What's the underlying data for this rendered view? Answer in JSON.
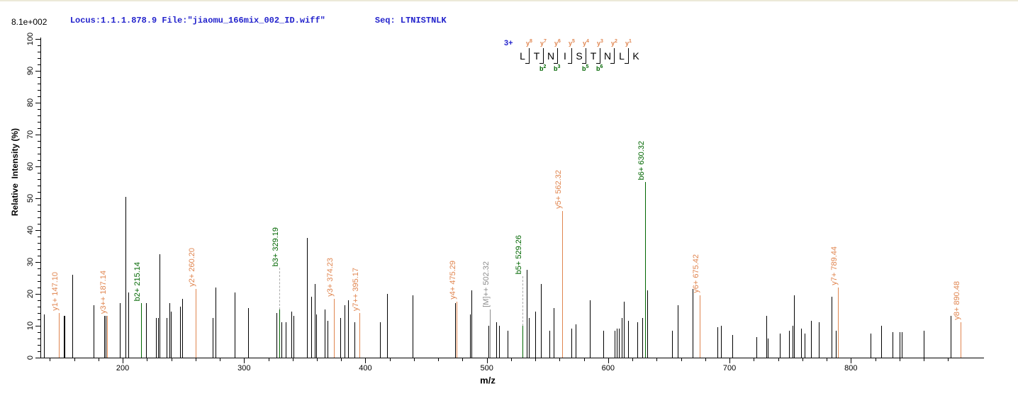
{
  "header": {
    "locus_line": "Locus:1.1.1.878.9 File:\"jiaomu_166mix_002_ID.wiff\"",
    "seq_label": "Seq: LTNISTNLK",
    "max_intensity": "8.1e+002"
  },
  "sequence_panel": {
    "charge": "3+",
    "residues": [
      "L",
      "T",
      "N",
      "I",
      "S",
      "T",
      "N",
      "L",
      "K"
    ],
    "boundaries": [
      {
        "y": 8,
        "b": null
      },
      {
        "y": 7,
        "b": 2
      },
      {
        "y": 6,
        "b": 3
      },
      {
        "y": 5,
        "b": null
      },
      {
        "y": 4,
        "b": 5
      },
      {
        "y": 3,
        "b": 6
      },
      {
        "y": 2,
        "b": null
      },
      {
        "y": 1,
        "b": null
      }
    ]
  },
  "axes": {
    "x_label": "m/z",
    "y_label": "Relative  Intensity (%)",
    "x_ticks": [
      200,
      300,
      400,
      500,
      600,
      700,
      800
    ],
    "x_minor_step": 20,
    "x_minor_start": 140,
    "x_minor_end": 900,
    "y_ticks": [
      0,
      10,
      20,
      30,
      40,
      50,
      60,
      70,
      80,
      90,
      100
    ],
    "y_minor_step": 2,
    "x_min": 132.2,
    "x_max": 909,
    "y_min": 0,
    "y_max": 100
  },
  "colors": {
    "header_blue": "#2222CC",
    "y_ion": "#E0854F",
    "b_ion": "#006600",
    "precursor_gray": "#8C8C8C",
    "peak_black": "#000000",
    "dash_gray": "#AAAAAA"
  },
  "chart_data": {
    "type": "bar",
    "subtype": "ms2-fragment-spectrum",
    "xlabel": "m/z",
    "ylabel": "Relative  Intensity (%)",
    "xlim": [
      132,
      909
    ],
    "ylim": [
      0,
      100
    ],
    "peaks": [
      {
        "mz": 135.0,
        "pct": 13.5
      },
      {
        "mz": 147.1,
        "pct": 14,
        "ion": "y",
        "label": "y1+ 147.10"
      },
      {
        "mz": 151.5,
        "pct": 13,
        "w": 2
      },
      {
        "mz": 158.4,
        "pct": 26
      },
      {
        "mz": 176.0,
        "pct": 16.5
      },
      {
        "mz": 184.7,
        "pct": 13
      },
      {
        "mz": 186.2,
        "pct": 13
      },
      {
        "mz": 187.14,
        "pct": 13,
        "ion": "y",
        "label": "y3++ 187.14"
      },
      {
        "mz": 197.7,
        "pct": 17
      },
      {
        "mz": 202.1,
        "pct": 50.5
      },
      {
        "mz": 204.7,
        "pct": 20.5
      },
      {
        "mz": 215.14,
        "pct": 17,
        "ion": "b",
        "label": "b2+ 215.14"
      },
      {
        "mz": 219.5,
        "pct": 17
      },
      {
        "mz": 227.3,
        "pct": 12.5
      },
      {
        "mz": 229.0,
        "pct": 12.5
      },
      {
        "mz": 230.5,
        "pct": 32.5
      },
      {
        "mz": 236.0,
        "pct": 12.5
      },
      {
        "mz": 238.6,
        "pct": 17
      },
      {
        "mz": 239.9,
        "pct": 14.5
      },
      {
        "mz": 247.1,
        "pct": 16
      },
      {
        "mz": 249.2,
        "pct": 18.5
      },
      {
        "mz": 260.2,
        "pct": 21.5,
        "ion": "y",
        "label": "y2+ 260.20"
      },
      {
        "mz": 274.0,
        "pct": 12.5
      },
      {
        "mz": 276.3,
        "pct": 22
      },
      {
        "mz": 292.0,
        "pct": 20.5
      },
      {
        "mz": 303.4,
        "pct": 15.5
      },
      {
        "mz": 326.5,
        "pct": 14
      },
      {
        "mz": 329.19,
        "pct": 15,
        "ion": "b",
        "label": "b3+ 329.19",
        "label_at": 28
      },
      {
        "mz": 331.0,
        "pct": 11
      },
      {
        "mz": 334.4,
        "pct": 11
      },
      {
        "mz": 339.0,
        "pct": 14.5
      },
      {
        "mz": 340.8,
        "pct": 13
      },
      {
        "mz": 351.9,
        "pct": 37.5
      },
      {
        "mz": 355.4,
        "pct": 19
      },
      {
        "mz": 358.3,
        "pct": 23
      },
      {
        "mz": 359.5,
        "pct": 13.5
      },
      {
        "mz": 366.5,
        "pct": 15
      },
      {
        "mz": 368.8,
        "pct": 11.5
      },
      {
        "mz": 374.23,
        "pct": 18.5,
        "ion": "y",
        "label": "y3+ 374.23"
      },
      {
        "mz": 379.3,
        "pct": 12.5
      },
      {
        "mz": 382.8,
        "pct": 16.5
      },
      {
        "mz": 385.7,
        "pct": 18
      },
      {
        "mz": 391.0,
        "pct": 11
      },
      {
        "mz": 395.17,
        "pct": 14,
        "ion": "y",
        "label": "y7++ 395.17"
      },
      {
        "mz": 412.0,
        "pct": 11
      },
      {
        "mz": 418.0,
        "pct": 20
      },
      {
        "mz": 439.0,
        "pct": 19.5
      },
      {
        "mz": 474.0,
        "pct": 17
      },
      {
        "mz": 475.29,
        "pct": 17.5,
        "ion": "y",
        "label": "y4+ 475.29"
      },
      {
        "mz": 486.0,
        "pct": 13.5
      },
      {
        "mz": 487.5,
        "pct": 21
      },
      {
        "mz": 501.4,
        "pct": 10
      },
      {
        "mz": 502.32,
        "pct": 15,
        "ion": "M",
        "label": "[M]++ 502.32"
      },
      {
        "mz": 507.8,
        "pct": 11
      },
      {
        "mz": 510.2,
        "pct": 10
      },
      {
        "mz": 517.2,
        "pct": 8.5
      },
      {
        "mz": 529.26,
        "pct": 10,
        "ion": "b",
        "label": "b5+ 529.26",
        "label_at": 25.5
      },
      {
        "mz": 533.0,
        "pct": 27.5
      },
      {
        "mz": 534.7,
        "pct": 12.5
      },
      {
        "mz": 540.0,
        "pct": 14.5
      },
      {
        "mz": 544.6,
        "pct": 23
      },
      {
        "mz": 551.6,
        "pct": 8.5
      },
      {
        "mz": 555.1,
        "pct": 15.5
      },
      {
        "mz": 562.32,
        "pct": 46,
        "ion": "y",
        "label": "y5+ 562.32"
      },
      {
        "mz": 569.8,
        "pct": 9
      },
      {
        "mz": 573.3,
        "pct": 10.5
      },
      {
        "mz": 585.0,
        "pct": 18
      },
      {
        "mz": 596.1,
        "pct": 8.5
      },
      {
        "mz": 605.4,
        "pct": 8.5
      },
      {
        "mz": 607.2,
        "pct": 9
      },
      {
        "mz": 608.9,
        "pct": 9
      },
      {
        "mz": 611.3,
        "pct": 12.5
      },
      {
        "mz": 613.0,
        "pct": 17.5
      },
      {
        "mz": 616.5,
        "pct": 11.5
      },
      {
        "mz": 624.1,
        "pct": 11
      },
      {
        "mz": 628.2,
        "pct": 12.5
      },
      {
        "mz": 630.32,
        "pct": 55,
        "ion": "b",
        "label": "b6+ 630.32"
      },
      {
        "mz": 632.3,
        "pct": 21
      },
      {
        "mz": 652.7,
        "pct": 8.5
      },
      {
        "mz": 657.4,
        "pct": 16.5
      },
      {
        "mz": 669.7,
        "pct": 21.5
      },
      {
        "mz": 675.42,
        "pct": 19.5,
        "ion": "y",
        "label": "y6+ 675.42"
      },
      {
        "mz": 690.0,
        "pct": 9.5
      },
      {
        "mz": 693.0,
        "pct": 10
      },
      {
        "mz": 702.3,
        "pct": 7
      },
      {
        "mz": 722.2,
        "pct": 6.5
      },
      {
        "mz": 730.4,
        "pct": 13
      },
      {
        "mz": 731.5,
        "pct": 6
      },
      {
        "mz": 741.5,
        "pct": 7.5
      },
      {
        "mz": 749.1,
        "pct": 8.5
      },
      {
        "mz": 752.0,
        "pct": 10
      },
      {
        "mz": 753.2,
        "pct": 19.5
      },
      {
        "mz": 759.0,
        "pct": 9
      },
      {
        "mz": 761.9,
        "pct": 7.5
      },
      {
        "mz": 767.2,
        "pct": 11.5
      },
      {
        "mz": 773.6,
        "pct": 11
      },
      {
        "mz": 784.1,
        "pct": 19
      },
      {
        "mz": 787.7,
        "pct": 8.5
      },
      {
        "mz": 789.44,
        "pct": 22,
        "ion": "y",
        "label": "y7+ 789.44"
      },
      {
        "mz": 816.3,
        "pct": 7.5
      },
      {
        "mz": 825.0,
        "pct": 10
      },
      {
        "mz": 834.4,
        "pct": 8
      },
      {
        "mz": 840.2,
        "pct": 8
      },
      {
        "mz": 842.0,
        "pct": 8
      },
      {
        "mz": 860.0,
        "pct": 8.5
      },
      {
        "mz": 882.3,
        "pct": 13
      },
      {
        "mz": 890.48,
        "pct": 11,
        "ion": "y",
        "label": "y8+ 890.48"
      }
    ]
  }
}
